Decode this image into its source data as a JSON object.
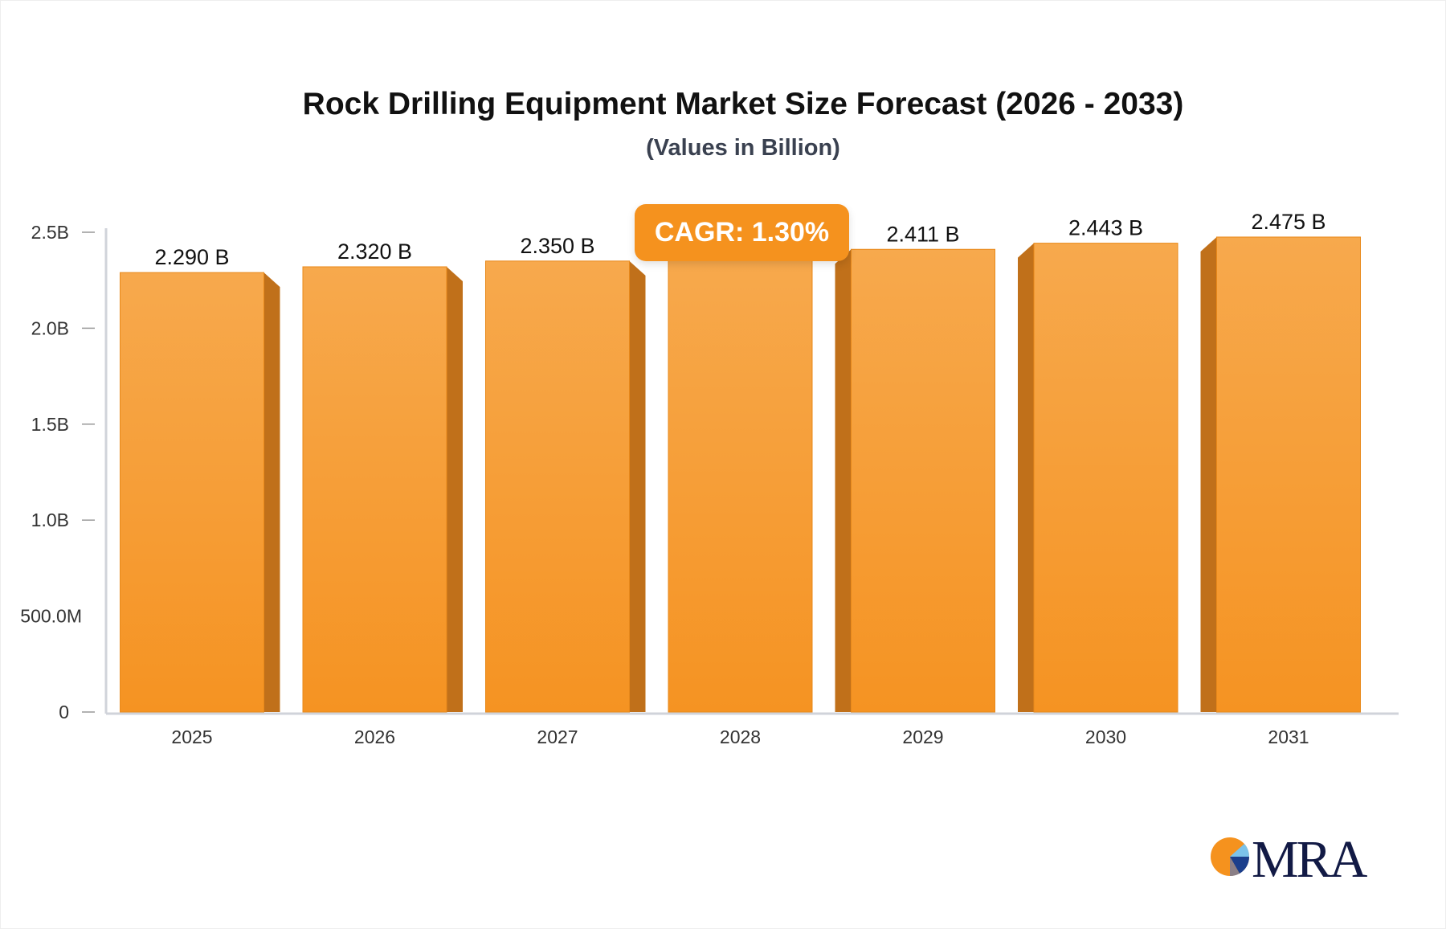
{
  "chart_data": {
    "type": "bar",
    "title": "Rock Drilling Equipment Market Size Forecast (2026 - 2033)",
    "subtitle": "(Values in Billion)",
    "categories": [
      "2025",
      "2026",
      "2027",
      "2028",
      "2029",
      "2030",
      "2031"
    ],
    "values": [
      2.29,
      2.32,
      2.35,
      2.38,
      2.411,
      2.443,
      2.475
    ],
    "value_labels": [
      "2.290 B",
      "2.320 B",
      "2.350 B",
      "",
      "2.411 B",
      "2.443 B",
      "2.475 B"
    ],
    "unit": "B",
    "ylim": [
      0,
      2.5
    ],
    "yticks": [
      0,
      0.5,
      1.0,
      1.5,
      2.0,
      2.5
    ],
    "ytick_labels": [
      "0",
      "500.0M",
      "1.0B",
      "1.5B",
      "2.0B",
      "2.5B"
    ],
    "grid": false,
    "bar_color": "#f7a042",
    "side_color": "#c0701a",
    "annotation": "CAGR: 1.30%",
    "annotation_color": "#f5921e"
  },
  "logo": {
    "text": "MRA"
  }
}
